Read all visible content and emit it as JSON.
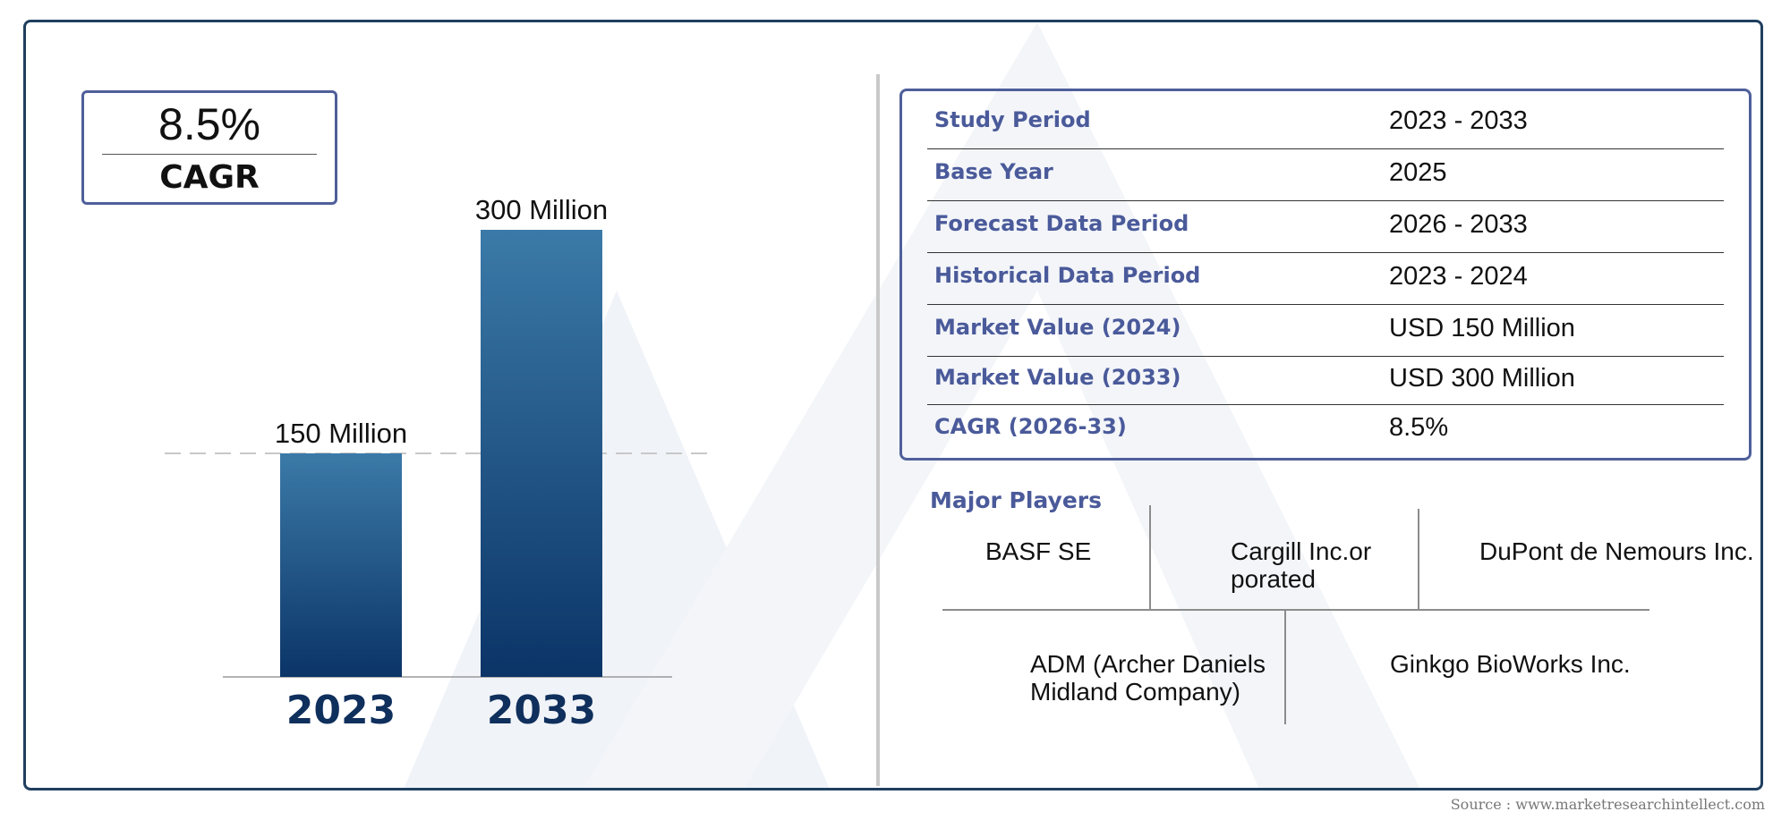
{
  "cagr_box": {
    "value": "8.5%",
    "label": "CAGR"
  },
  "chart_data": {
    "type": "bar",
    "categories": [
      "2023",
      "2033"
    ],
    "values": [
      150,
      300
    ],
    "data_labels": [
      "150 Million",
      "300 Million"
    ],
    "colors": {
      "bar_top": "#3b7aa8",
      "bar_bottom": "#0b3467",
      "category_text": "#0f2f5c"
    }
  },
  "info_table": {
    "rows": [
      {
        "key": "Study Period",
        "value": "2023 - 2033"
      },
      {
        "key": "Base Year",
        "value": "2025"
      },
      {
        "key": "Forecast Data Period",
        "value": "2026 - 2033"
      },
      {
        "key": "Historical Data Period",
        "value": "2023 - 2024"
      },
      {
        "key": "Market Value (2024)",
        "value": "USD 150 Million"
      },
      {
        "key": "Market Value (2033)",
        "value": "USD 300 Million"
      },
      {
        "key": "CAGR (2026-33)",
        "value": "8.5%"
      }
    ]
  },
  "major_players": {
    "title": "Major Players",
    "players": [
      "BASF SE",
      "Cargill Inc.orporated",
      "DuPont de Nemours Inc.",
      "ADM (Archer Daniels Midland Company)",
      "Ginkgo BioWorks Inc."
    ]
  },
  "source": "Source : www.marketresearchintellect.com",
  "colors": {
    "frame": "#1f3f5f",
    "box_border": "#4f5f9a",
    "key_text": "#4a5a9a"
  }
}
